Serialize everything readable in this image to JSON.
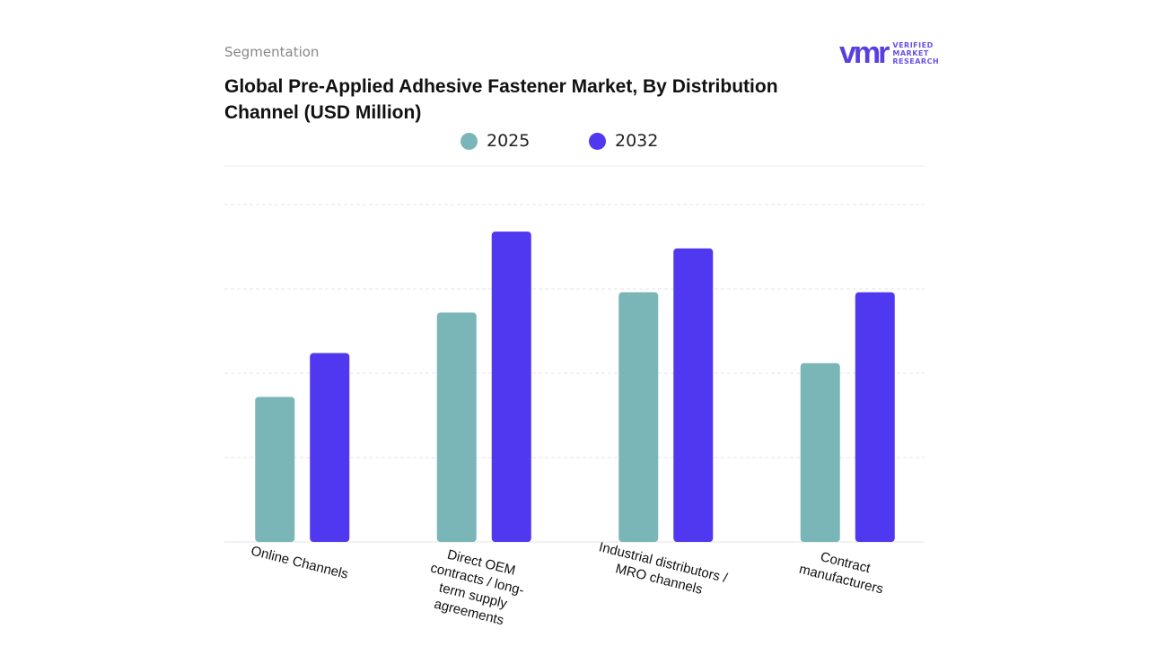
{
  "header": {
    "section": "Segmentation",
    "logo": "VERIFIED MARKET RESEARCH"
  },
  "chart_data": {
    "type": "bar",
    "title": "Global Pre-Applied Adhesive Fastener Market, By Distribution Channel (USD Million)",
    "categories": [
      "Online Channels",
      "Direct OEM contracts / long-term supply agreements",
      "Industrial distributors / MRO channels",
      "Contract manufacturers"
    ],
    "series": [
      {
        "name": "2025",
        "color": "#7ab5b8",
        "values": [
          43,
          68,
          74,
          53
        ]
      },
      {
        "name": "2032",
        "color": "#5037f0",
        "values": [
          56,
          92,
          87,
          74
        ]
      }
    ],
    "ylim": [
      0,
      100
    ],
    "yticks": [
      0,
      25,
      50,
      75,
      100
    ],
    "grid": true
  }
}
